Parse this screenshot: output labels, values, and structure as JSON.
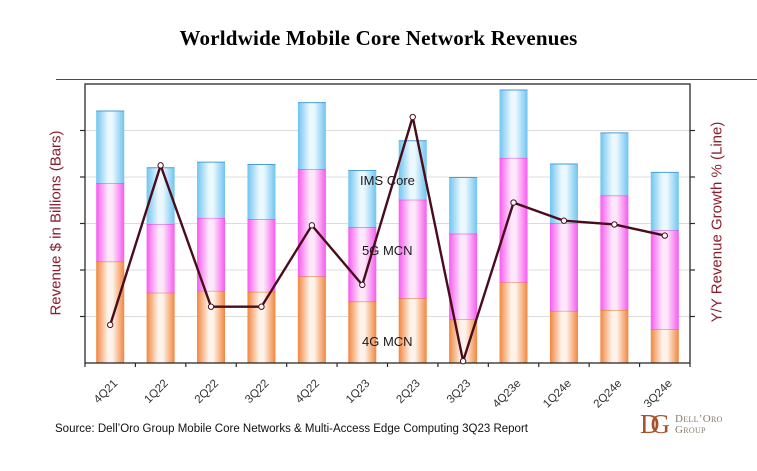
{
  "title": "Worldwide Mobile Core Network Revenues",
  "source_note": "Source: Dell’Oro Group Mobile Core Networks & Multi-Access Edge Computing 3Q23 Report",
  "logo": {
    "letter_d": "D",
    "letter_g": "G",
    "name_line1": "Dell’Oro",
    "name_line2": "Group",
    "monogram_color": "#a5512c",
    "text_color": "#887b69"
  },
  "chart_data": {
    "type": "bar",
    "subtype": "stacked bars with secondary-axis line overlay",
    "title": "Worldwide Mobile Core Network Revenues",
    "ylabel_left": "Revenue $ in Billions (Bars)",
    "ylabel_right": "Y/Y Revenue Growth % (Line)",
    "axis_note": "Both value axes show tick marks only (no numeric tick labels); values below are estimated in gridline units, plot height = 6 units",
    "ylim_grid_units": [
      0,
      6
    ],
    "gridline_count": 5,
    "grid_on": true,
    "legend": "in-plot text labels identify bar segments",
    "categories": [
      "4Q21",
      "1Q22",
      "2Q22",
      "3Q22",
      "4Q22",
      "1Q23",
      "2Q23",
      "3Q23",
      "4Q23e",
      "1Q24e",
      "2Q24e",
      "3Q24e"
    ],
    "series": [
      {
        "name": "4G MCN",
        "type": "bar",
        "stack_order": 1,
        "color_edge": "#F1863F",
        "color_light": "#FEF3EA",
        "color_cap": "#E2701F",
        "values_grid_units": [
          2.18,
          1.51,
          1.55,
          1.53,
          1.86,
          1.32,
          1.39,
          0.94,
          1.73,
          1.12,
          1.14,
          0.72
        ]
      },
      {
        "name": "5G MCN",
        "type": "bar",
        "stack_order": 2,
        "color_edge": "#F75AF0",
        "color_light": "#FCE8FA",
        "color_cap": "#D93FD0",
        "values_grid_units": [
          1.69,
          1.48,
          1.57,
          1.56,
          2.31,
          1.6,
          2.12,
          1.84,
          2.68,
          1.89,
          2.46,
          2.13
        ]
      },
      {
        "name": "IMS Core",
        "type": "bar",
        "stack_order": 3,
        "color_edge": "#6FC4F0",
        "color_light": "#EBF8FE",
        "color_cap": "#4C9ED6",
        "values_grid_units": [
          1.55,
          1.21,
          1.2,
          1.18,
          1.43,
          1.22,
          1.27,
          1.21,
          1.46,
          1.27,
          1.35,
          1.25
        ]
      },
      {
        "name": "Y/Y Revenue Growth %",
        "type": "line",
        "axis": "right",
        "color": "#4A0C1C",
        "marker": "open-circle",
        "values_grid_units": [
          0.82,
          4.25,
          1.21,
          1.21,
          2.96,
          1.68,
          5.29,
          0.04,
          3.45,
          3.06,
          2.98,
          2.74
        ]
      }
    ],
    "colors": {
      "axis_label": "#8b1e2e",
      "gridline": "#dcdcdc",
      "frame": "#2a2a2a",
      "tick_label": "#333333"
    }
  }
}
